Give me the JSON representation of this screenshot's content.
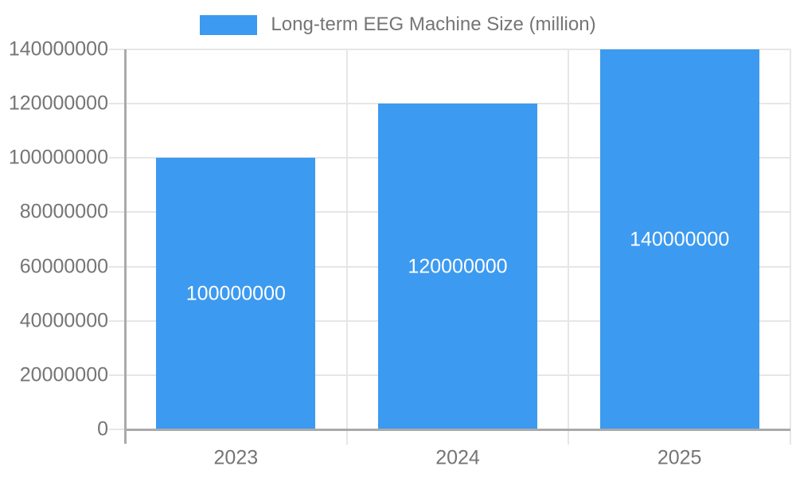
{
  "legend": {
    "label": "Long-term EEG Machine Size (million)",
    "swatch_color": "#3C9AF0"
  },
  "chart_data": {
    "type": "bar",
    "title": "",
    "xlabel": "",
    "ylabel": "",
    "series_name": "Long-term EEG Machine Size (million)",
    "categories": [
      "2023",
      "2024",
      "2025"
    ],
    "values": [
      100000000,
      120000000,
      140000000
    ],
    "bar_labels": [
      "100000000",
      "120000000",
      "140000000"
    ],
    "ylim": [
      0,
      140000000
    ],
    "ytick_step": 20000000,
    "ytick_labels": [
      "0",
      "20000000",
      "40000000",
      "60000000",
      "80000000",
      "100000000",
      "120000000",
      "140000000"
    ],
    "grid": true,
    "legend_position": "top-center",
    "colors": {
      "bar": "#3C9AF0",
      "grid": "#E6E6E6",
      "axis": "#AAAAAA",
      "label": "#757575",
      "bar_label": "#FFFFFF",
      "background": "#FFFFFF"
    }
  }
}
